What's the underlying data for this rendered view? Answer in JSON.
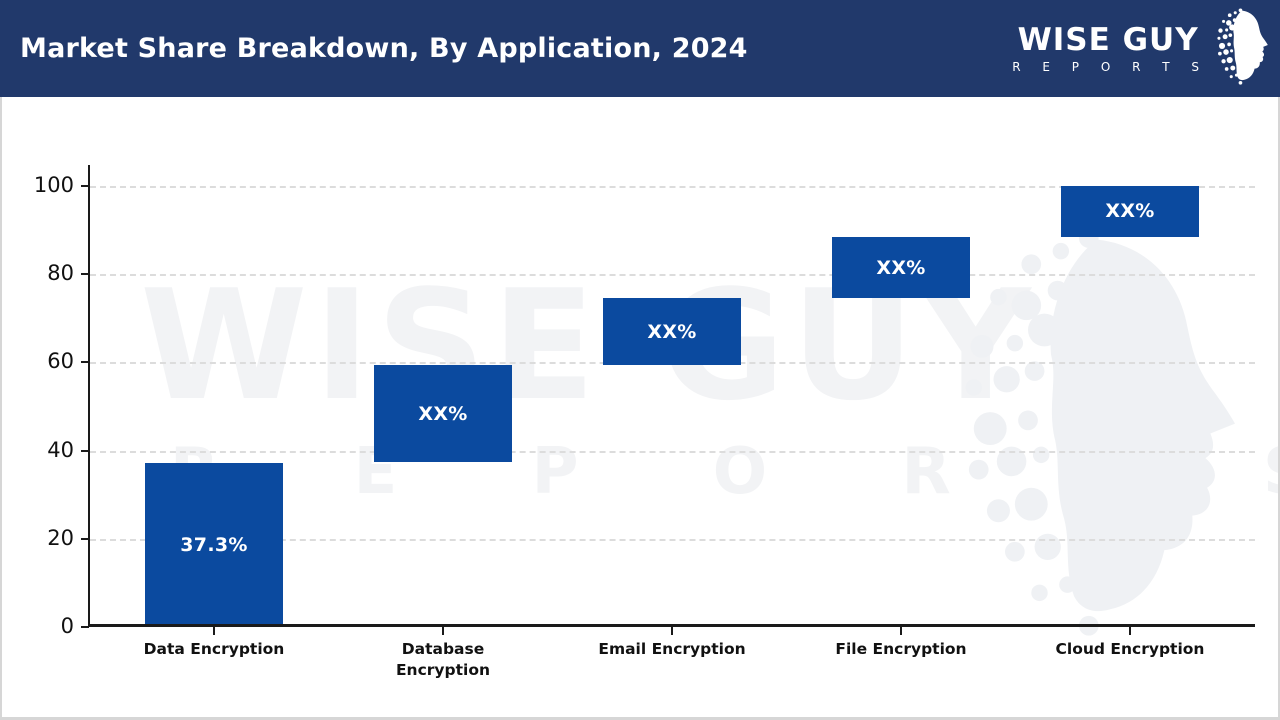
{
  "header": {
    "title": "Market Share Breakdown, By Application, 2024",
    "bg_color": "#21396b",
    "logo": {
      "line1": "WISE GUY",
      "line2": "R E P O R T S"
    }
  },
  "watermark": {
    "line1": "WISE GUY",
    "line2": "R E P O R T S"
  },
  "chart_data": {
    "type": "bar",
    "subtype": "waterfall",
    "title": "Market Share Breakdown, By Application, 2024",
    "categories": [
      "Data Encryption",
      "Database\nEncryption",
      "Email Encryption",
      "File Encryption",
      "Cloud Encryption"
    ],
    "bars": [
      {
        "category": "Data Encryption",
        "label": "37.3%",
        "start": 0,
        "end": 37.3
      },
      {
        "category": "Database Encryption",
        "label": "XX%",
        "start": 37.3,
        "end": 59.5
      },
      {
        "category": "Email Encryption",
        "label": "XX%",
        "start": 59.5,
        "end": 74.5
      },
      {
        "category": "File Encryption",
        "label": "XX%",
        "start": 74.5,
        "end": 88.5
      },
      {
        "category": "Cloud Encryption",
        "label": "XX%",
        "start": 88.5,
        "end": 100
      }
    ],
    "yticks": [
      0,
      20,
      40,
      60,
      80,
      100
    ],
    "ylim": [
      0,
      105
    ],
    "xlabel": "",
    "ylabel": "",
    "legend": "none",
    "grid": "horizontal-dashed",
    "bar_color": "#0b4a9f",
    "bar_label_color": "#ffffff",
    "gridline_color": "#dcdcdc",
    "axis_color": "#1a1a1a",
    "header_color": "#21396b"
  }
}
